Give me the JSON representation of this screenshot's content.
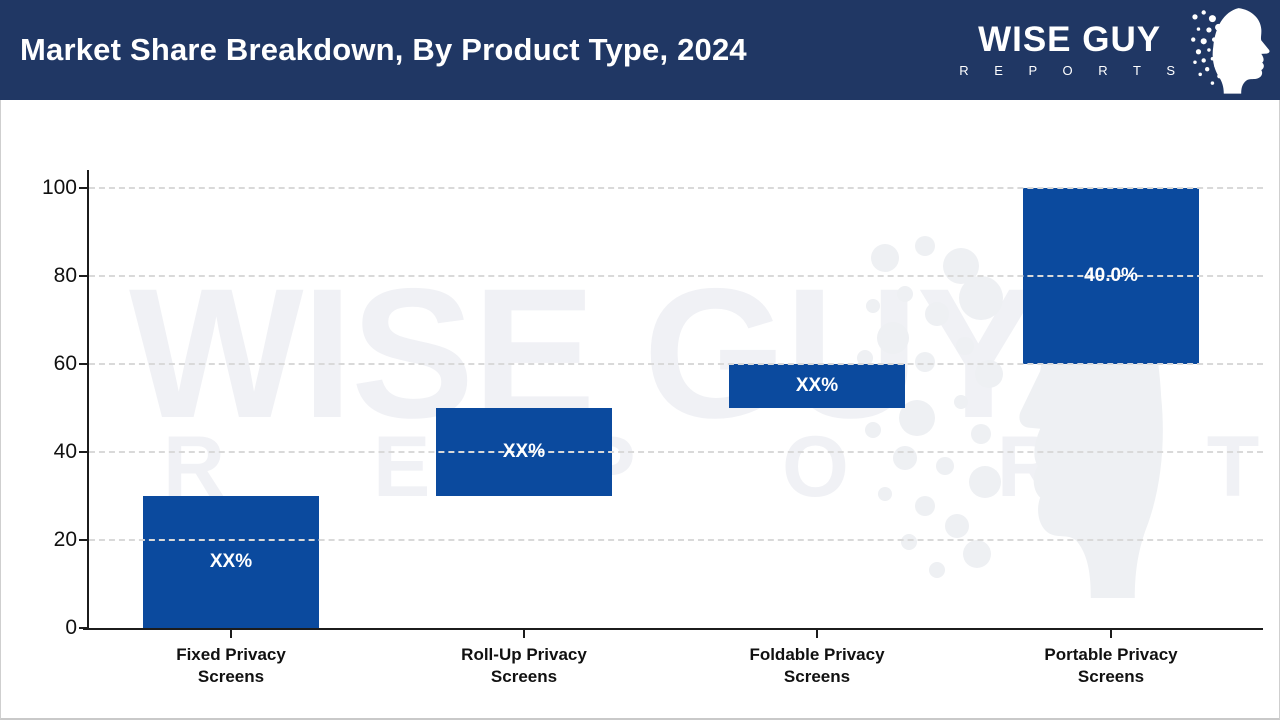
{
  "header": {
    "title": "Market Share Breakdown, By Product Type, 2024",
    "logo": {
      "line1": "WISE GUY",
      "line2": "R E P O R T S"
    }
  },
  "watermark": {
    "line1": "WISE GUY",
    "line2": "R E P O R T S"
  },
  "chart_data": {
    "type": "bar",
    "subtype": "waterfall",
    "title": "Market Share Breakdown, By Product Type, 2024",
    "categories": [
      "Fixed Privacy\nScreens",
      "Roll-Up Privacy\nScreens",
      "Foldable Privacy\nScreens",
      "Portable Privacy\nScreens"
    ],
    "bars": [
      {
        "category": "Fixed Privacy\nScreens",
        "start": 0,
        "end": 30,
        "label": "XX%"
      },
      {
        "category": "Roll-Up Privacy\nScreens",
        "start": 30,
        "end": 50,
        "label": "XX%"
      },
      {
        "category": "Foldable Privacy\nScreens",
        "start": 50,
        "end": 60,
        "label": "XX%"
      },
      {
        "category": "Portable Privacy\nScreens",
        "start": 60,
        "end": 100,
        "label": "40.0%"
      }
    ],
    "yticks": [
      0,
      20,
      40,
      60,
      80,
      100
    ],
    "ylim": [
      0,
      105
    ],
    "xlabel": "",
    "ylabel": "",
    "grid": "horizontal-dashed",
    "legend": "none",
    "bar_color": "#0b4a9e"
  },
  "colors": {
    "header_bg": "#203764",
    "bar_fill": "#0b4a9e",
    "grid": "#d9d9d9",
    "axis": "#1c1c1c",
    "watermark": "#f0f1f5",
    "text_dark": "#111111",
    "text_light": "#ffffff"
  }
}
